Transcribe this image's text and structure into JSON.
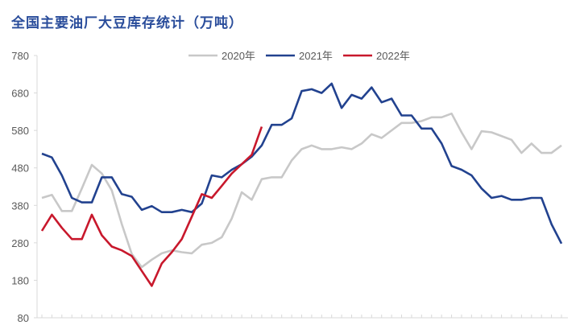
{
  "title": "全国主要油厂大豆库存统计（万吨）",
  "chart_data": {
    "type": "line",
    "title": "全国主要油厂大豆库存统计（万吨）",
    "xlabel": "",
    "ylabel": "万吨",
    "ylim": [
      80,
      780
    ],
    "yticks": [
      80,
      180,
      280,
      380,
      480,
      580,
      680,
      780
    ],
    "x_note": "weekly points (week 1..53), no x tick labels shown",
    "grid": false,
    "legend_position": "top",
    "series": [
      {
        "name": "2020年",
        "color": "#c8c8c8",
        "values": [
          400,
          408,
          365,
          365,
          425,
          488,
          465,
          420,
          330,
          250,
          215,
          235,
          252,
          260,
          255,
          252,
          275,
          280,
          295,
          345,
          415,
          395,
          450,
          455,
          455,
          500,
          530,
          540,
          530,
          530,
          535,
          530,
          545,
          570,
          560,
          580,
          600,
          600,
          605,
          615,
          615,
          625,
          575,
          530,
          578,
          575,
          565,
          555,
          520,
          545,
          520,
          520,
          540
        ]
      },
      {
        "name": "2021年",
        "color": "#22428f",
        "values": [
          518,
          508,
          460,
          400,
          388,
          388,
          455,
          455,
          410,
          403,
          368,
          378,
          362,
          362,
          368,
          362,
          385,
          460,
          455,
          475,
          490,
          510,
          540,
          595,
          595,
          612,
          685,
          690,
          680,
          705,
          640,
          675,
          665,
          695,
          655,
          665,
          620,
          620,
          585,
          585,
          545,
          485,
          475,
          460,
          425,
          400,
          405,
          395,
          395,
          400,
          400,
          330,
          278
        ]
      },
      {
        "name": "2022年",
        "color": "#c8182c",
        "values": [
          312,
          355,
          320,
          290,
          290,
          355,
          300,
          270,
          260,
          245,
          205,
          165,
          225,
          255,
          290,
          350,
          410,
          400,
          432,
          465,
          490,
          515,
          590
        ]
      }
    ]
  }
}
